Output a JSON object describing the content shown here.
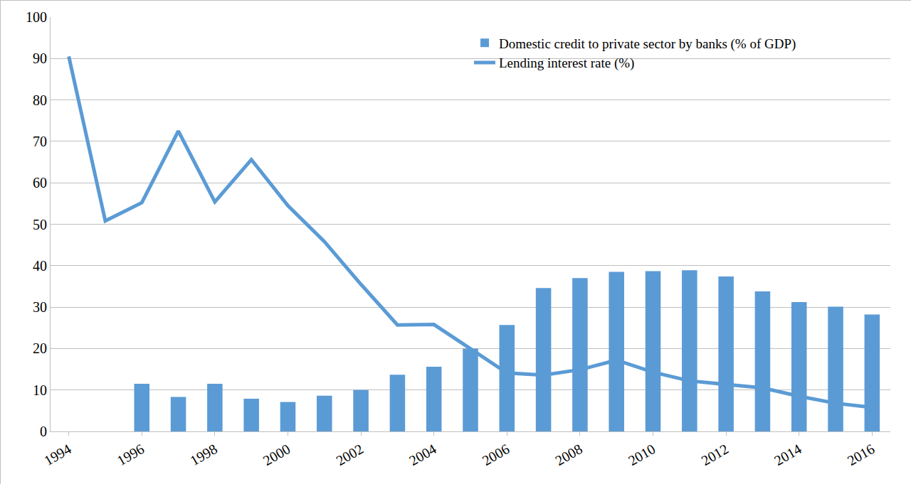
{
  "chart_data": {
    "type": "bar",
    "categories": [
      "1994",
      null,
      "1996",
      null,
      "1998",
      null,
      "2000",
      null,
      "2002",
      null,
      "2004",
      null,
      "2006",
      null,
      "2008",
      null,
      "2010",
      null,
      "2012",
      null,
      "2014",
      null,
      "2016"
    ],
    "series": [
      {
        "name": "Domestic credit to private sector by banks (% of GDP)",
        "type": "bar",
        "color": "#5b9bd5",
        "values": [
          null,
          null,
          11.5,
          8.3,
          11.5,
          7.9,
          7.1,
          8.6,
          10.0,
          13.7,
          15.6,
          20.0,
          25.7,
          34.6,
          37.0,
          38.5,
          38.7,
          38.9,
          37.4,
          33.8,
          31.2,
          30.1,
          28.2
        ]
      },
      {
        "name": "Lending interest rate (%)",
        "type": "line",
        "color": "#5b9bd5",
        "line_style": "solid",
        "values": [
          90.5,
          50.8,
          55.2,
          72.5,
          55.4,
          65.6,
          54.5,
          45.8,
          35.5,
          25.7,
          25.8,
          19.9,
          14.1,
          13.6,
          14.9,
          17.2,
          14.3,
          12.2,
          11.3,
          10.5,
          8.5,
          6.8,
          5.8
        ]
      }
    ],
    "ylim": [
      0,
      100
    ],
    "yticks": [
      0,
      10,
      20,
      30,
      40,
      50,
      60,
      70,
      80,
      90,
      100
    ],
    "grid": true,
    "legend": "upper right"
  }
}
